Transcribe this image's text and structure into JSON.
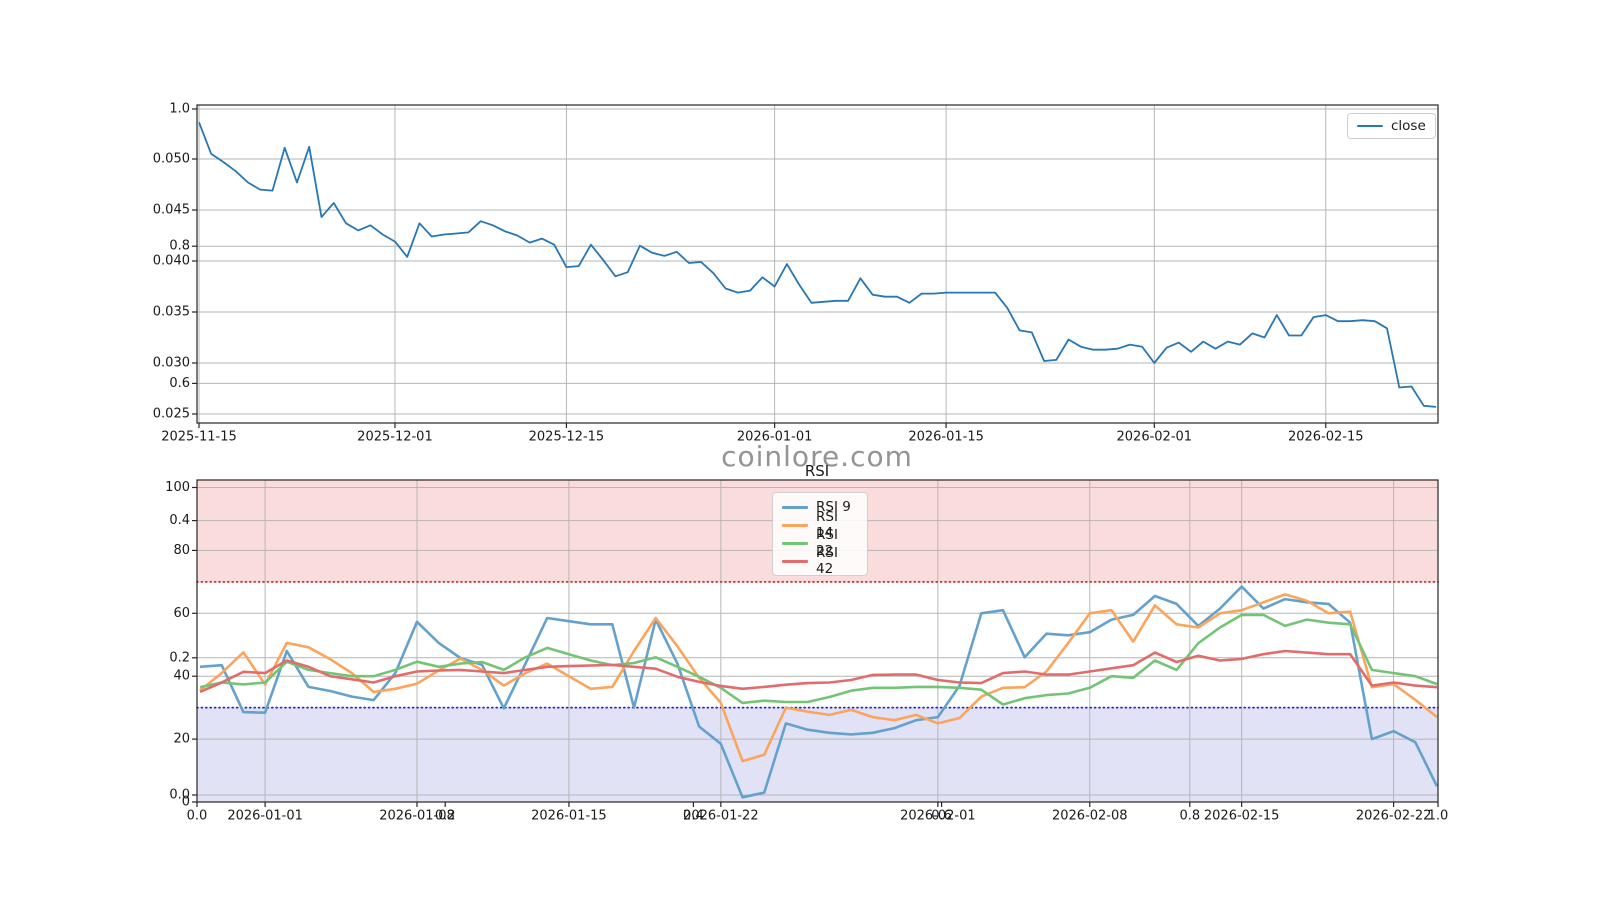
{
  "watermark": "coinlore.com",
  "colors": {
    "price_line": "#2677b4",
    "rsi9": "#64a1cc",
    "rsi14": "#fba55c",
    "rsi22": "#74c476",
    "rsi42": "#e26c6c",
    "overbought_band": "#fbdcdc",
    "oversold_band": "#e2e2f6",
    "overbought_line": "#e02424",
    "oversold_line": "#2424cf",
    "grid": "#b6b6b6",
    "spine": "#262626",
    "tick_text": "#1a1a1a",
    "watermark_text": "#949494"
  },
  "figure_axis": {
    "y_ticks": [
      "1.0",
      "0.8",
      "0.6",
      "0.4",
      "0.2",
      "0.0"
    ],
    "y_tick_values": [
      1.0,
      0.8,
      0.6,
      0.4,
      0.2,
      0.0
    ],
    "x_ticks": [
      "0.0",
      "0.2",
      "0.4",
      "0.6",
      "0.8",
      "1.0"
    ],
    "x_tick_values": [
      0.0,
      0.2,
      0.4,
      0.6,
      0.8,
      1.0
    ]
  },
  "chart_data": [
    {
      "type": "line",
      "title": "",
      "legend_position": "upper right",
      "grid": true,
      "y_tick_labels": [
        "0.050",
        "0.045",
        "0.040",
        "0.035",
        "0.030",
        "0.025"
      ],
      "y_tick_values": [
        0.05,
        0.045,
        0.04,
        0.035,
        0.03,
        0.025
      ],
      "ylim": [
        0.0241,
        0.0553
      ],
      "x_tick_dates": [
        "2025-11-15",
        "2025-12-01",
        "2025-12-15",
        "2026-01-01",
        "2026-01-15",
        "2026-02-01",
        "2026-02-15"
      ],
      "start_date": "2025-11-15",
      "end_date": "2026-02-24",
      "frequency": "daily",
      "series": [
        {
          "name": "close",
          "color": "price_line",
          "values": [
            0.0536,
            0.0505,
            0.0497,
            0.0488,
            0.0477,
            0.047,
            0.0469,
            0.0511,
            0.0477,
            0.0512,
            0.0443,
            0.0457,
            0.0437,
            0.043,
            0.0435,
            0.0426,
            0.0419,
            0.0404,
            0.0437,
            0.0424,
            0.0426,
            0.0427,
            0.0428,
            0.0439,
            0.0435,
            0.0429,
            0.0425,
            0.0418,
            0.0422,
            0.0416,
            0.0394,
            0.0395,
            0.0416,
            0.0401,
            0.0385,
            0.0389,
            0.0415,
            0.0408,
            0.0405,
            0.0409,
            0.0398,
            0.0399,
            0.0388,
            0.0373,
            0.0369,
            0.0371,
            0.0384,
            0.0375,
            0.0397,
            0.0377,
            0.0359,
            0.036,
            0.0361,
            0.0361,
            0.0383,
            0.0367,
            0.0365,
            0.0365,
            0.0359,
            0.0368,
            0.0368,
            0.0369,
            0.0369,
            0.0369,
            0.0369,
            0.0369,
            0.0354,
            0.0332,
            0.033,
            0.0302,
            0.0303,
            0.0323,
            0.0316,
            0.0313,
            0.0313,
            0.0314,
            0.0318,
            0.0316,
            0.03,
            0.0315,
            0.032,
            0.0311,
            0.0321,
            0.0314,
            0.0321,
            0.0318,
            0.0329,
            0.0325,
            0.0347,
            0.0327,
            0.0327,
            0.0345,
            0.0347,
            0.0341,
            0.0341,
            0.0342,
            0.0341,
            0.0334,
            0.0276,
            0.0277,
            0.0258,
            0.0257
          ]
        }
      ]
    },
    {
      "type": "line",
      "title": "RSI",
      "legend_position": "upper center",
      "grid": true,
      "y_tick_labels": [
        "100",
        "80",
        "60",
        "40",
        "20",
        "0"
      ],
      "y_tick_values": [
        100,
        80,
        60,
        40,
        20,
        0
      ],
      "ylim": [
        0,
        102.5
      ],
      "overbought_threshold": 70,
      "oversold_threshold": 30,
      "x_tick_dates": [
        "2026-01-01",
        "2026-01-08",
        "2026-01-15",
        "2026-01-22",
        "2026-02-01",
        "2026-02-08",
        "2026-02-15",
        "2026-02-22"
      ],
      "start_date": "2025-12-29",
      "end_date": "2026-02-24",
      "frequency": "daily",
      "series": [
        {
          "name": "RSI 9",
          "color": "rsi9",
          "values": [
            43,
            43.5,
            28.6,
            28.4,
            48,
            36.6,
            35.3,
            33.5,
            32.4,
            41,
            57.3,
            50.6,
            45.8,
            43.6,
            29.8,
            44,
            58.5,
            57.5,
            56.5,
            56.5,
            30,
            58,
            44,
            24,
            18.5,
            1.5,
            3,
            25,
            23,
            22,
            21.5,
            22,
            23.5,
            26,
            27,
            37,
            60,
            61,
            46,
            53.5,
            53,
            54,
            58,
            59.5,
            65.5,
            63,
            56,
            61.5,
            68.5,
            61.5,
            64.5,
            63.5,
            63,
            57,
            20,
            22.5,
            19,
            5
          ]
        },
        {
          "name": "RSI 14",
          "color": "rsi14",
          "values": [
            35.5,
            41,
            47.6,
            37.3,
            50.6,
            49.2,
            45.4,
            41,
            35,
            36,
            37.6,
            41.8,
            45.6,
            42,
            37,
            41,
            44,
            40,
            36,
            36.6,
            48,
            58.5,
            49.5,
            39.5,
            31.5,
            13,
            15,
            30,
            28.7,
            27.7,
            29.3,
            27,
            26,
            27.7,
            25,
            26.7,
            33.5,
            36.3,
            36.5,
            41.5,
            50.5,
            60,
            61,
            51,
            62.5,
            56.5,
            55.5,
            60,
            61,
            63.5,
            66,
            64,
            60,
            60.5,
            36.5,
            37.5,
            32.5,
            27
          ]
        },
        {
          "name": "RSI 22",
          "color": "rsi22",
          "values": [
            36.5,
            38,
            37.4,
            38,
            44.6,
            42,
            41,
            40,
            40,
            42,
            44.6,
            43,
            44,
            44.5,
            42,
            46,
            49,
            47,
            45,
            43.5,
            44.2,
            46,
            43,
            39.8,
            36.3,
            31.5,
            32.2,
            31.8,
            31.8,
            33.4,
            35.4,
            36.3,
            36.3,
            36.6,
            36.6,
            36.3,
            35.7,
            31,
            33,
            34,
            34.5,
            36.3,
            40,
            39.5,
            45,
            42,
            50.5,
            55.5,
            59.5,
            59.5,
            56,
            58,
            57,
            56.5,
            42,
            41,
            40,
            37.5
          ]
        },
        {
          "name": "RSI 42",
          "color": "rsi42",
          "values": [
            35,
            38,
            41.4,
            41,
            45,
            43,
            40,
            39,
            38,
            40,
            41.5,
            41.8,
            42,
            41.5,
            41,
            42,
            43,
            43.2,
            43.4,
            43.6,
            43,
            42.4,
            39.8,
            38.2,
            36.9,
            36,
            36.6,
            37.3,
            37.8,
            38,
            38.8,
            40.4,
            40.5,
            40.5,
            38.8,
            38,
            37.8,
            41,
            41.5,
            40.5,
            40.5,
            41.5,
            42.5,
            43.5,
            47.5,
            44.5,
            46.5,
            45,
            45.5,
            47,
            48,
            47.5,
            47,
            47,
            37,
            38,
            37,
            36.5
          ]
        }
      ]
    }
  ]
}
